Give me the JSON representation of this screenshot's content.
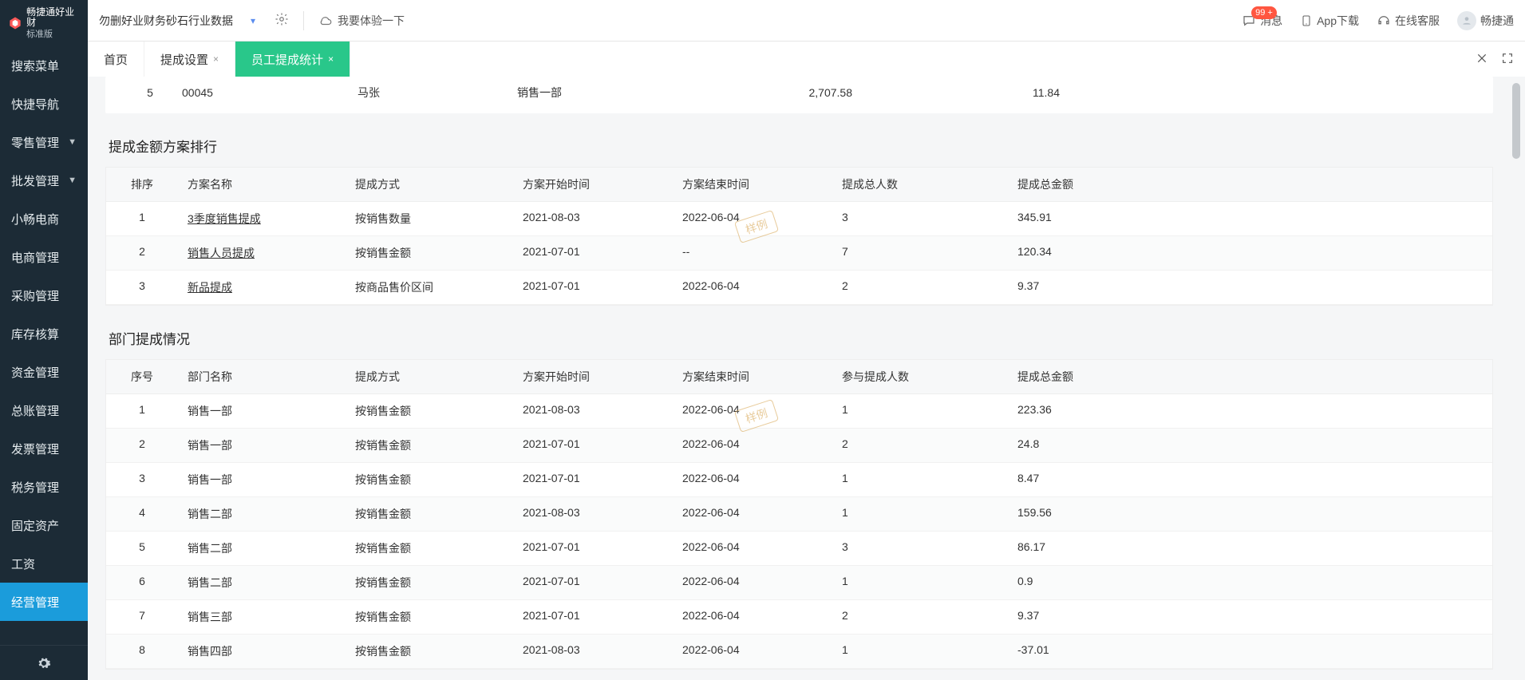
{
  "brand": {
    "name": "畅捷通好业财",
    "edition": "标准版"
  },
  "topbar": {
    "account": "勿删好业财务砂石行业数据",
    "try": "我要体验一下",
    "msg": "消息",
    "badge": "99 +",
    "download": "App下载",
    "service": "在线客服",
    "user": "畅捷通"
  },
  "tabs": {
    "home": "首页",
    "t2": "提成设置",
    "t3": "员工提成统计"
  },
  "sidebar": {
    "items": [
      {
        "label": "搜索菜单"
      },
      {
        "label": "快捷导航"
      },
      {
        "label": "零售管理",
        "caret": true
      },
      {
        "label": "批发管理",
        "caret": true
      },
      {
        "label": "小畅电商"
      },
      {
        "label": "电商管理"
      },
      {
        "label": "采购管理"
      },
      {
        "label": "库存核算"
      },
      {
        "label": "资金管理"
      },
      {
        "label": "总账管理"
      },
      {
        "label": "发票管理"
      },
      {
        "label": "税务管理"
      },
      {
        "label": "固定资产"
      },
      {
        "label": "工资"
      },
      {
        "label": "经营管理"
      }
    ]
  },
  "partial": {
    "rank": "5",
    "code": "00045",
    "name": "马张",
    "dept": "销售一部",
    "amount": "2,707.58",
    "commission": "11.84"
  },
  "section1": {
    "title": "提成金额方案排行",
    "headers": {
      "h1": "排序",
      "h2": "方案名称",
      "h3": "提成方式",
      "h4": "方案开始时间",
      "h5": "方案结束时间",
      "h6": "提成总人数",
      "h7": "提成总金额"
    },
    "rows": [
      {
        "c1": "1",
        "c2": "3季度销售提成",
        "c3": "按销售数量",
        "c4": "2021-08-03",
        "c5": "2022-06-04",
        "c6": "3",
        "c7": "345.91"
      },
      {
        "c1": "2",
        "c2": "销售人员提成",
        "c3": "按销售金额",
        "c4": "2021-07-01",
        "c5": "--",
        "c6": "7",
        "c7": "120.34"
      },
      {
        "c1": "3",
        "c2": "新品提成",
        "c3": "按商品售价区间",
        "c4": "2021-07-01",
        "c5": "2022-06-04",
        "c6": "2",
        "c7": "9.37"
      }
    ]
  },
  "section2": {
    "title": "部门提成情况",
    "headers": {
      "h1": "序号",
      "h2": "部门名称",
      "h3": "提成方式",
      "h4": "方案开始时间",
      "h5": "方案结束时间",
      "h6": "参与提成人数",
      "h7": "提成总金额"
    },
    "rows": [
      {
        "c1": "1",
        "c2": "销售一部",
        "c3": "按销售金额",
        "c4": "2021-08-03",
        "c5": "2022-06-04",
        "c6": "1",
        "c7": "223.36"
      },
      {
        "c1": "2",
        "c2": "销售一部",
        "c3": "按销售金额",
        "c4": "2021-07-01",
        "c5": "2022-06-04",
        "c6": "2",
        "c7": "24.8"
      },
      {
        "c1": "3",
        "c2": "销售一部",
        "c3": "按销售金额",
        "c4": "2021-07-01",
        "c5": "2022-06-04",
        "c6": "1",
        "c7": "8.47"
      },
      {
        "c1": "4",
        "c2": "销售二部",
        "c3": "按销售金额",
        "c4": "2021-08-03",
        "c5": "2022-06-04",
        "c6": "1",
        "c7": "159.56"
      },
      {
        "c1": "5",
        "c2": "销售二部",
        "c3": "按销售金额",
        "c4": "2021-07-01",
        "c5": "2022-06-04",
        "c6": "3",
        "c7": "86.17"
      },
      {
        "c1": "6",
        "c2": "销售二部",
        "c3": "按销售金额",
        "c4": "2021-07-01",
        "c5": "2022-06-04",
        "c6": "1",
        "c7": "0.9"
      },
      {
        "c1": "7",
        "c2": "销售三部",
        "c3": "按销售金额",
        "c4": "2021-07-01",
        "c5": "2022-06-04",
        "c6": "2",
        "c7": "9.37"
      },
      {
        "c1": "8",
        "c2": "销售四部",
        "c3": "按销售金额",
        "c4": "2021-08-03",
        "c5": "2022-06-04",
        "c6": "1",
        "c7": "-37.01"
      }
    ]
  },
  "watermark": "样例"
}
